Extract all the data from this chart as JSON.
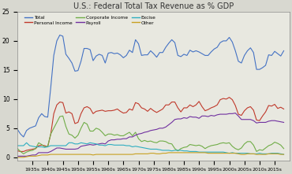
{
  "title": "U.S.: Federal Total Tax Revenue as % GDP",
  "background_color": "#d8d8d0",
  "plot_bg_color": "#e8e8e0",
  "xlim": [
    1930,
    2020
  ],
  "ylim": [
    -0.5,
    25
  ],
  "yticks": [
    0,
    5,
    10,
    15,
    20,
    25
  ],
  "xticks": [
    1935,
    1940,
    1945,
    1950,
    1955,
    1960,
    1965,
    1970,
    1975,
    1980,
    1985,
    1990,
    1995,
    2000,
    2005,
    2010,
    2015
  ],
  "xtick_labels": [
    "1935s",
    "1940s",
    "1945s",
    "1950s",
    "1955s",
    "1960s",
    "1965s",
    "1970s",
    "1975s",
    "1980s",
    "1985s",
    "1990s",
    "1995s",
    "2000s",
    "2005s",
    "2010s",
    "2015s"
  ],
  "legend_entries": [
    "Total",
    "Personal Income",
    "Corporate Income",
    "Payroll",
    "Excise",
    "Other"
  ],
  "colors": [
    "#4472c4",
    "#c0392b",
    "#70ad47",
    "#7030a0",
    "#2eaec1",
    "#c8a020"
  ],
  "years": [
    1930,
    1931,
    1932,
    1933,
    1934,
    1935,
    1936,
    1937,
    1938,
    1939,
    1940,
    1941,
    1942,
    1943,
    1944,
    1945,
    1946,
    1947,
    1948,
    1949,
    1950,
    1951,
    1952,
    1953,
    1954,
    1955,
    1956,
    1957,
    1958,
    1959,
    1960,
    1961,
    1962,
    1963,
    1964,
    1965,
    1966,
    1967,
    1968,
    1969,
    1970,
    1971,
    1972,
    1973,
    1974,
    1975,
    1976,
    1977,
    1978,
    1979,
    1980,
    1981,
    1982,
    1983,
    1984,
    1985,
    1986,
    1987,
    1988,
    1989,
    1990,
    1991,
    1992,
    1993,
    1994,
    1995,
    1996,
    1997,
    1998,
    1999,
    2000,
    2001,
    2002,
    2003,
    2004,
    2005,
    2006,
    2007,
    2008,
    2009,
    2010,
    2011,
    2012,
    2013,
    2014,
    2015,
    2016,
    2017,
    2018
  ],
  "total": [
    4.8,
    4.0,
    3.5,
    4.6,
    5.0,
    5.2,
    5.4,
    6.8,
    7.5,
    7.0,
    6.9,
    12.0,
    17.5,
    20.0,
    21.0,
    20.8,
    17.7,
    17.0,
    16.2,
    14.8,
    14.9,
    16.5,
    18.7,
    18.7,
    18.5,
    16.6,
    17.4,
    17.7,
    17.5,
    16.2,
    17.9,
    18.0,
    17.8,
    17.9,
    17.6,
    17.1,
    17.5,
    18.4,
    18.0,
    20.2,
    19.5,
    17.5,
    17.6,
    17.6,
    18.3,
    17.8,
    17.2,
    18.0,
    18.0,
    18.9,
    19.6,
    20.2,
    19.7,
    17.5,
    17.3,
    17.7,
    17.5,
    18.4,
    18.1,
    18.3,
    18.1,
    17.8,
    17.5,
    17.5,
    18.1,
    18.6,
    18.9,
    19.7,
    20.0,
    20.0,
    20.6,
    19.8,
    18.3,
    16.5,
    16.2,
    17.5,
    18.3,
    18.8,
    18.0,
    15.1,
    15.1,
    15.4,
    15.8,
    17.6,
    17.5,
    18.2,
    17.8,
    17.4,
    18.3
  ],
  "personal": [
    1.1,
    1.0,
    1.0,
    1.2,
    1.3,
    1.4,
    1.5,
    2.0,
    2.1,
    2.0,
    1.8,
    4.0,
    7.5,
    9.0,
    9.5,
    9.4,
    7.6,
    7.8,
    7.5,
    5.8,
    6.0,
    7.5,
    8.5,
    8.7,
    8.4,
    7.5,
    7.9,
    8.0,
    8.1,
    7.9,
    8.0,
    8.0,
    8.1,
    8.3,
    7.9,
    7.6,
    7.7,
    8.3,
    8.1,
    9.4,
    9.2,
    8.5,
    8.3,
    7.9,
    8.4,
    8.0,
    7.7,
    8.0,
    8.3,
    9.0,
    9.0,
    9.5,
    9.5,
    8.5,
    7.8,
    8.5,
    8.5,
    9.0,
    8.7,
    9.0,
    9.6,
    8.7,
    8.0,
    8.2,
    8.5,
    8.7,
    9.0,
    9.9,
    10.1,
    10.0,
    10.3,
    9.9,
    8.9,
    7.4,
    7.2,
    8.0,
    8.5,
    8.7,
    8.1,
    6.4,
    6.3,
    7.1,
    7.8,
    8.9,
    8.8,
    9.1,
    8.4,
    8.6,
    8.3
  ],
  "corporate": [
    1.5,
    1.0,
    0.6,
    0.9,
    1.1,
    1.2,
    1.5,
    2.5,
    2.2,
    1.8,
    1.9,
    4.0,
    5.0,
    6.0,
    7.0,
    7.1,
    5.3,
    4.0,
    3.8,
    3.3,
    3.8,
    5.0,
    6.0,
    5.7,
    4.5,
    4.5,
    5.0,
    4.8,
    4.3,
    3.7,
    4.0,
    4.0,
    3.8,
    3.9,
    3.7,
    3.7,
    4.0,
    4.3,
    3.7,
    4.3,
    3.2,
    2.7,
    2.9,
    2.7,
    2.8,
    2.6,
    2.5,
    2.8,
    2.8,
    2.7,
    2.4,
    2.3,
    1.5,
    1.1,
    1.5,
    1.7,
    1.8,
    2.2,
    2.1,
    2.0,
    2.1,
    1.9,
    1.5,
    1.8,
    2.0,
    2.1,
    2.2,
    2.4,
    2.5,
    2.4,
    2.5,
    1.9,
    1.5,
    1.3,
    1.6,
    2.3,
    2.7,
    2.7,
    2.1,
    1.0,
    1.3,
    1.2,
    1.6,
    2.0,
    2.2,
    2.6,
    2.4,
    2.1,
    1.5
  ],
  "payroll": [
    0.2,
    0.2,
    0.2,
    0.2,
    0.3,
    0.4,
    0.4,
    0.8,
    0.8,
    0.8,
    0.8,
    1.0,
    1.3,
    1.6,
    1.6,
    1.5,
    1.4,
    1.4,
    1.4,
    1.4,
    1.5,
    1.9,
    2.0,
    2.1,
    2.2,
    2.1,
    2.2,
    2.3,
    2.4,
    2.3,
    2.8,
    3.0,
    3.0,
    3.1,
    3.1,
    3.2,
    3.2,
    3.5,
    3.5,
    3.8,
    4.0,
    4.1,
    4.3,
    4.4,
    4.6,
    4.7,
    4.8,
    5.0,
    5.0,
    5.2,
    5.6,
    6.0,
    6.5,
    6.6,
    6.6,
    6.8,
    6.7,
    7.0,
    6.9,
    6.9,
    6.7,
    7.1,
    7.1,
    7.0,
    7.2,
    7.1,
    7.3,
    7.4,
    7.4,
    7.4,
    7.5,
    7.5,
    7.6,
    7.1,
    6.5,
    6.5,
    6.5,
    6.5,
    6.3,
    5.9,
    6.0,
    6.0,
    6.0,
    6.2,
    6.3,
    6.3,
    6.2,
    6.1,
    6.0
  ],
  "excise": [
    2.0,
    2.0,
    2.0,
    2.5,
    2.0,
    1.9,
    1.8,
    1.8,
    1.8,
    1.7,
    1.8,
    2.0,
    2.0,
    2.0,
    2.0,
    2.0,
    2.0,
    2.5,
    2.5,
    2.3,
    2.3,
    2.5,
    2.4,
    2.3,
    2.5,
    2.4,
    2.3,
    2.1,
    2.1,
    2.0,
    2.2,
    2.2,
    2.1,
    2.1,
    2.1,
    2.1,
    2.0,
    2.0,
    1.8,
    1.9,
    1.8,
    1.7,
    1.6,
    1.5,
    1.4,
    1.4,
    1.4,
    1.3,
    1.2,
    1.2,
    1.2,
    1.1,
    1.2,
    1.2,
    1.2,
    1.1,
    1.1,
    1.0,
    1.0,
    1.0,
    0.9,
    0.9,
    0.9,
    0.9,
    0.9,
    0.9,
    0.9,
    0.9,
    0.9,
    0.8,
    0.7,
    0.8,
    0.7,
    0.7,
    0.7,
    0.7,
    0.7,
    0.6,
    0.6,
    0.6,
    0.7,
    0.6,
    0.6,
    0.6,
    0.7,
    0.7,
    0.7,
    0.6,
    0.5
  ],
  "other": [
    0.0,
    0.0,
    0.0,
    0.1,
    0.2,
    0.2,
    0.2,
    0.3,
    0.4,
    0.4,
    0.4,
    0.5,
    0.5,
    0.5,
    0.5,
    0.5,
    0.5,
    0.5,
    0.5,
    0.5,
    0.5,
    0.5,
    0.5,
    0.5,
    0.5,
    0.4,
    0.5,
    0.5,
    0.5,
    0.5,
    0.5,
    0.5,
    0.5,
    0.5,
    0.5,
    0.5,
    0.5,
    0.5,
    0.5,
    0.6,
    0.6,
    0.6,
    0.6,
    0.6,
    0.7,
    0.7,
    0.6,
    0.6,
    0.7,
    0.7,
    0.8,
    0.8,
    0.8,
    0.8,
    0.8,
    0.8,
    0.8,
    0.8,
    0.8,
    0.8,
    0.8,
    0.8,
    0.8,
    0.7,
    0.7,
    0.7,
    0.7,
    0.7,
    0.7,
    0.7,
    0.7,
    0.7,
    0.7,
    0.6,
    0.5,
    0.5,
    0.6,
    0.6,
    0.6,
    0.5,
    0.5,
    0.5,
    0.5,
    0.6,
    0.6,
    0.6,
    0.6,
    0.5,
    0.5
  ]
}
